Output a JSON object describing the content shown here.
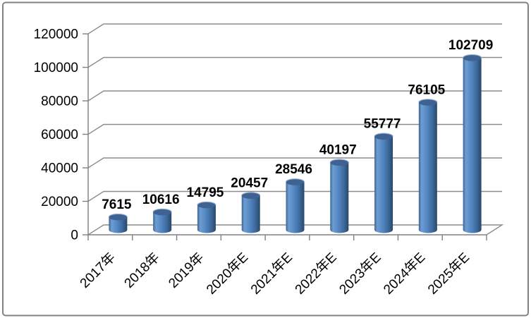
{
  "chart_data": {
    "type": "bar",
    "subtype": "cylinder-3d",
    "title": "",
    "xlabel": "",
    "ylabel": "",
    "categories": [
      "2017年",
      "2018年",
      "2019年",
      "2020年E",
      "2021年E",
      "2022年E",
      "2023年E",
      "2024年E",
      "2025年E"
    ],
    "values": [
      7615,
      10616,
      14795,
      20457,
      28546,
      40197,
      55777,
      76105,
      102709
    ],
    "data_labels": [
      "7615",
      "10616",
      "14795",
      "20457",
      "28546",
      "40197",
      "55777",
      "76105",
      "102709"
    ],
    "ylim": [
      0,
      120000
    ],
    "y_tick_interval": 20000,
    "y_tick_labels": [
      "0",
      "20000",
      "40000",
      "60000",
      "80000",
      "100000",
      "120000"
    ],
    "grid": true,
    "legend_position": "none",
    "colors": {
      "bar_body_left": "#3C6495",
      "bar_body_highlight": "#6E9DD1",
      "bar_body_mid": "#5589C4",
      "bar_body_shade": "#3F6CA1",
      "bar_body_right": "#294869",
      "bar_top": "#3E6292",
      "bar_top_rim": "#93ABC8",
      "gridline": "#8C8C8C",
      "axis": "#808080",
      "label_text": "#000000",
      "border": "#828282",
      "background": "#FFFFFF"
    }
  }
}
